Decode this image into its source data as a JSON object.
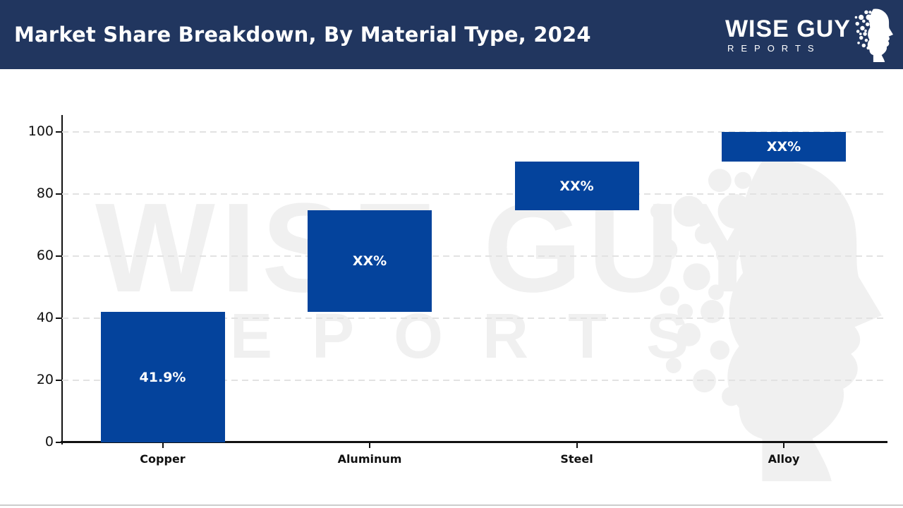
{
  "header": {
    "title": "Market Share Breakdown, By Material Type, 2024",
    "logo": {
      "line1": "WISE GUY",
      "line2": "REPORTS",
      "icon": "dotted-head-profile"
    }
  },
  "watermark": {
    "line1": "WISE GUY",
    "line2": "REPORTS",
    "icon": "dotted-head-profile"
  },
  "chart_data": {
    "type": "bar",
    "subtype": "waterfall",
    "title": "Market Share Breakdown, By Material Type, 2024",
    "categories": [
      "Copper",
      "Aluminum",
      "Steel",
      "Alloy"
    ],
    "segments": [
      {
        "category": "Copper",
        "start": 0,
        "end": 41.9,
        "value": 41.9,
        "label": "41.9%"
      },
      {
        "category": "Aluminum",
        "start": 41.9,
        "end": 74.6,
        "value": 32.7,
        "label": "XX%"
      },
      {
        "category": "Steel",
        "start": 74.6,
        "end": 90.4,
        "value": 15.8,
        "label": "XX%"
      },
      {
        "category": "Alloy",
        "start": 90.4,
        "end": 100,
        "value": 9.6,
        "label": "XX%"
      }
    ],
    "ylim": [
      0,
      100
    ],
    "yticks": [
      0,
      20,
      40,
      60,
      80,
      100
    ],
    "grid": "dashed-horizontal",
    "legend": "none",
    "bar_color": "#04439c",
    "bar_label_color": "#ffffff",
    "axis_color": "#111111",
    "header_color": "#21365f"
  }
}
